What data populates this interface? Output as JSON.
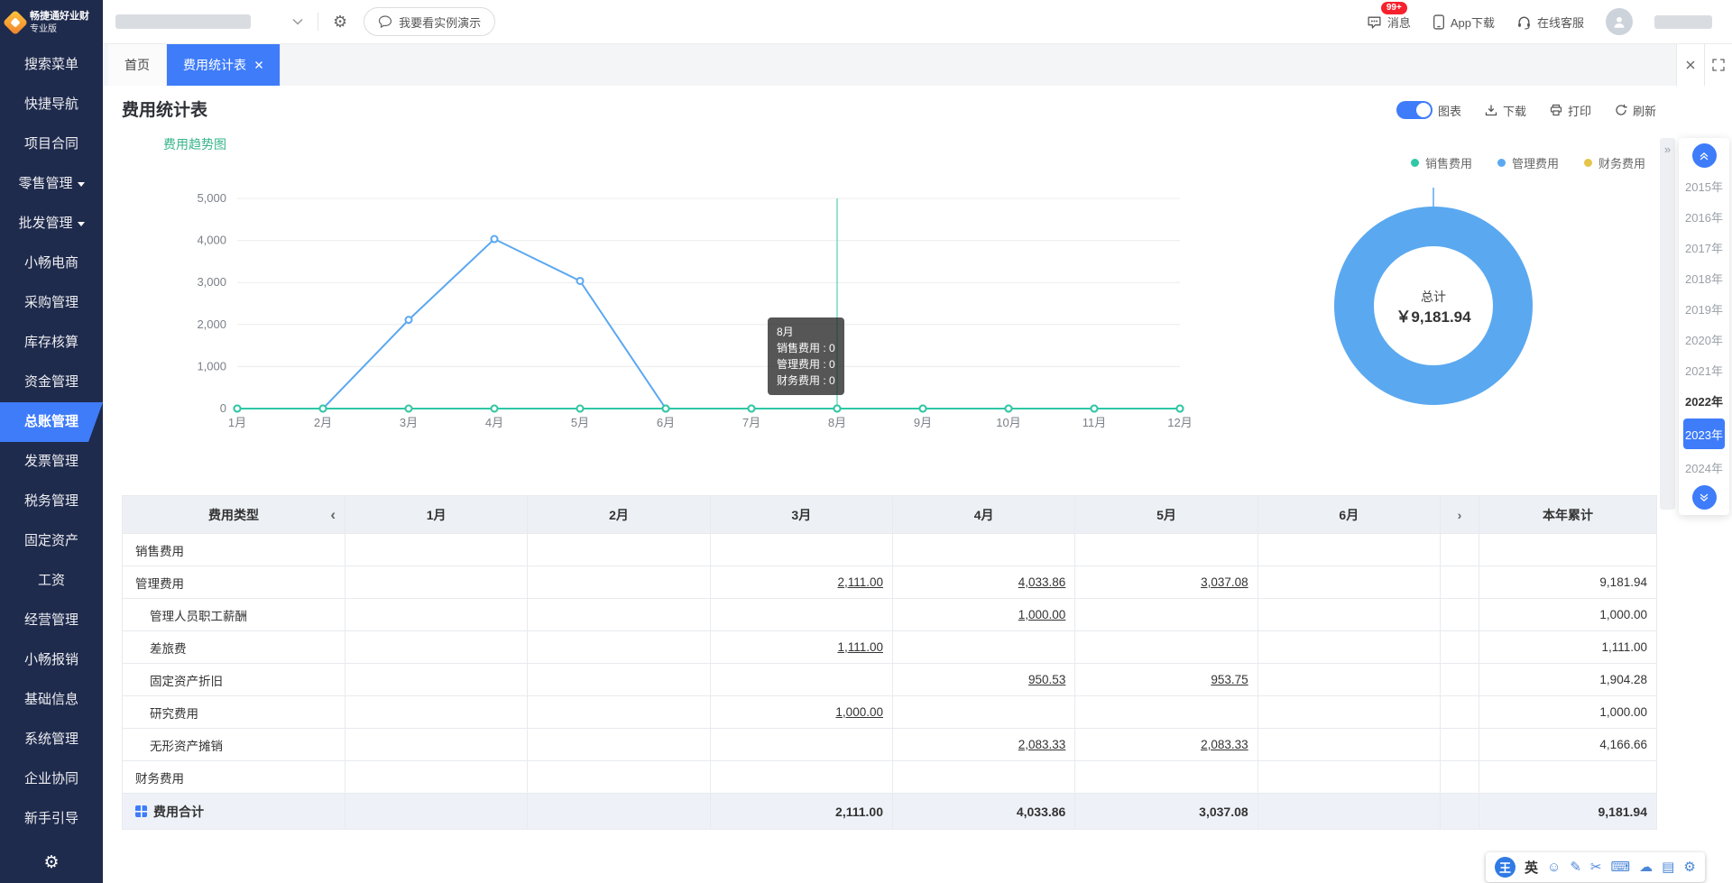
{
  "app": {
    "logo_title": "畅捷通好业财",
    "logo_subtitle": "专业版"
  },
  "colors": {
    "accent": "#3e7cfa",
    "sidebar_bg": "#1f2b4d",
    "badge_red": "#f5222d",
    "series_green": "#2fc7a5",
    "series_blue": "#5aa8f0",
    "series_yellow": "#e6c44a"
  },
  "icons": {
    "gear": "⚙"
  },
  "topbar": {
    "demo_label": "我要看实例演示",
    "messages": {
      "label": "消息",
      "badge": "99+"
    },
    "app_download_label": "App下载",
    "support_label": "在线客服"
  },
  "tabs": {
    "home": "首页",
    "active": "费用统计表"
  },
  "sidebar": {
    "items": [
      {
        "label": "搜索菜单"
      },
      {
        "label": "快捷导航"
      },
      {
        "label": "项目合同"
      },
      {
        "label": "零售管理",
        "caret": true
      },
      {
        "label": "批发管理",
        "caret": true
      },
      {
        "label": "小畅电商"
      },
      {
        "label": "采购管理"
      },
      {
        "label": "库存核算"
      },
      {
        "label": "资金管理"
      },
      {
        "label": "总账管理",
        "active": true
      },
      {
        "label": "发票管理"
      },
      {
        "label": "税务管理"
      },
      {
        "label": "固定资产"
      },
      {
        "label": "工资"
      },
      {
        "label": "经营管理"
      },
      {
        "label": "小畅报销"
      },
      {
        "label": "基础信息"
      },
      {
        "label": "系统管理"
      },
      {
        "label": "企业协同"
      },
      {
        "label": "新手引导"
      }
    ]
  },
  "page": {
    "title": "费用统计表",
    "toolbar": {
      "chart_toggle": "图表",
      "download": "下载",
      "print": "打印",
      "refresh": "刷新"
    }
  },
  "chart_data": {
    "type": "line",
    "title": "费用趋势图",
    "categories": [
      "1月",
      "2月",
      "3月",
      "4月",
      "5月",
      "6月",
      "7月",
      "8月",
      "9月",
      "10月",
      "11月",
      "12月"
    ],
    "series": [
      {
        "name": "销售费用",
        "color": "#2fc7a5",
        "values": [
          0,
          0,
          0,
          0,
          0,
          0,
          0,
          0,
          0,
          0,
          0,
          0
        ]
      },
      {
        "name": "管理费用",
        "color": "#5aa8f0",
        "values": [
          0,
          0,
          2111.0,
          4033.86,
          3037.08,
          0,
          0,
          0,
          0,
          0,
          0,
          0
        ]
      },
      {
        "name": "财务费用",
        "color": "#e6c44a",
        "values": [
          0,
          0,
          0,
          0,
          0,
          0,
          0,
          0,
          0,
          0,
          0,
          0
        ]
      }
    ],
    "ylim": [
      0,
      5000
    ],
    "yticks": [
      0,
      1000,
      2000,
      3000,
      4000,
      5000
    ],
    "ytick_labels": [
      "0",
      "1,000",
      "2,000",
      "3,000",
      "4,000",
      "5,000"
    ],
    "grid": true,
    "legend_position": "top-right",
    "tooltip": {
      "index": 7,
      "title": "8月",
      "lines": [
        "销售费用 : 0",
        "管理费用 : 0",
        "财务费用 : 0"
      ]
    },
    "donut": {
      "label": "总计",
      "value": "￥9,181.94",
      "segments": [
        {
          "name": "管理费用",
          "value": 9181.94,
          "color": "#5aa8f0"
        }
      ]
    }
  },
  "year_panel": {
    "collapse_label": "»",
    "items": [
      "2015年",
      "2016年",
      "2017年",
      "2018年",
      "2019年",
      "2020年",
      "2021年",
      "2022年",
      "2023年",
      "2024年"
    ],
    "active": "2023年",
    "emphasis": "2022年"
  },
  "table": {
    "header": {
      "type_col": "费用类型",
      "prev_label": "‹",
      "next_label": "›",
      "months": [
        "1月",
        "2月",
        "3月",
        "4月",
        "5月",
        "6月"
      ],
      "total_col": "本年累计"
    },
    "rows": [
      {
        "label": "销售费用",
        "indent": 0,
        "months": [
          "",
          "",
          "",
          "",
          "",
          ""
        ],
        "total": ""
      },
      {
        "label": "管理费用",
        "indent": 0,
        "months": [
          "",
          "",
          "2,111.00",
          "4,033.86",
          "3,037.08",
          ""
        ],
        "total": "9,181.94"
      },
      {
        "label": "管理人员职工薪酬",
        "indent": 1,
        "months": [
          "",
          "",
          "",
          "1,000.00",
          "",
          ""
        ],
        "total": "1,000.00"
      },
      {
        "label": "差旅费",
        "indent": 1,
        "months": [
          "",
          "",
          "1,111.00",
          "",
          "",
          ""
        ],
        "total": "1,111.00"
      },
      {
        "label": "固定资产折旧",
        "indent": 1,
        "months": [
          "",
          "",
          "",
          "950.53",
          "953.75",
          ""
        ],
        "total": "1,904.28"
      },
      {
        "label": "研究费用",
        "indent": 1,
        "months": [
          "",
          "",
          "1,000.00",
          "",
          "",
          ""
        ],
        "total": "1,000.00"
      },
      {
        "label": "无形资产摊销",
        "indent": 1,
        "months": [
          "",
          "",
          "",
          "2,083.33",
          "2,083.33",
          ""
        ],
        "total": "4,166.66"
      },
      {
        "label": "财务费用",
        "indent": 0,
        "months": [
          "",
          "",
          "",
          "",
          "",
          ""
        ],
        "total": ""
      }
    ],
    "footer": {
      "label": "费用合计",
      "months": [
        "",
        "",
        "2,111.00",
        "4,033.86",
        "3,037.08",
        ""
      ],
      "total": "9,181.94"
    }
  },
  "ime": {
    "logo": "王",
    "lang": "英",
    "icons": [
      {
        "name": "emoji-icon",
        "glyph": "☺"
      },
      {
        "name": "pen-icon",
        "glyph": "✎"
      },
      {
        "name": "scissors-icon",
        "glyph": "✂"
      },
      {
        "name": "keyboard-icon",
        "glyph": "⌨"
      },
      {
        "name": "cloud-icon",
        "glyph": "☁"
      },
      {
        "name": "grid-icon",
        "glyph": "▤"
      },
      {
        "name": "settings-icon",
        "glyph": "⚙"
      }
    ]
  }
}
